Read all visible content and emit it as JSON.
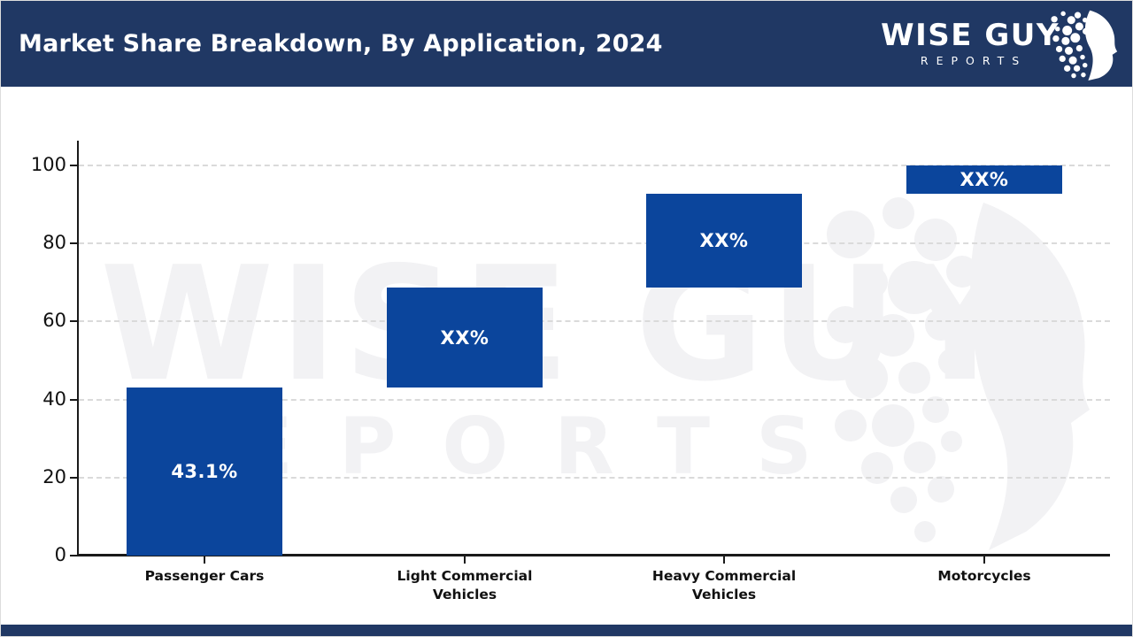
{
  "header": {
    "title": "Market Share Breakdown, By Application, 2024",
    "logo": {
      "name": "WISE GUY",
      "sub": "REPORTS"
    }
  },
  "watermark": {
    "line1": "WISE GUY",
    "line2": "REPORTS"
  },
  "chart_data": {
    "type": "bar",
    "subtype": "waterfall",
    "title": "Market Share Breakdown, By Application, 2024",
    "xlabel": "",
    "ylabel": "",
    "categories": [
      "Passenger Cars",
      "Light Commercial\nVehicles",
      "Heavy Commercial\nVehicles",
      "Motorcycles"
    ],
    "segments": [
      {
        "category": "Passenger Cars",
        "start": 0,
        "end": 43.1,
        "value": 43.1,
        "label": "43.1%"
      },
      {
        "category": "Light Commercial Vehicles",
        "start": 43.1,
        "end": 68.6,
        "value": 25.5,
        "label": "XX%"
      },
      {
        "category": "Heavy Commercial Vehicles",
        "start": 68.6,
        "end": 92.8,
        "value": 24.2,
        "label": "XX%"
      },
      {
        "category": "Motorcycles",
        "start": 92.8,
        "end": 100,
        "value": 7.2,
        "label": "XX%"
      }
    ],
    "yticks": [
      0,
      20,
      40,
      60,
      80,
      100
    ],
    "ylim": [
      0,
      105
    ],
    "grid": "horizontal dashed",
    "legend": "none",
    "bar_color": "#0b459c"
  },
  "colors": {
    "header_bg": "#203864",
    "footer_bg": "#203864",
    "bar": "#0b459c",
    "gridline": "#dadada",
    "axis": "#1a1a1a",
    "watermark": "#f2f2f4",
    "title_text": "#ffffff"
  }
}
